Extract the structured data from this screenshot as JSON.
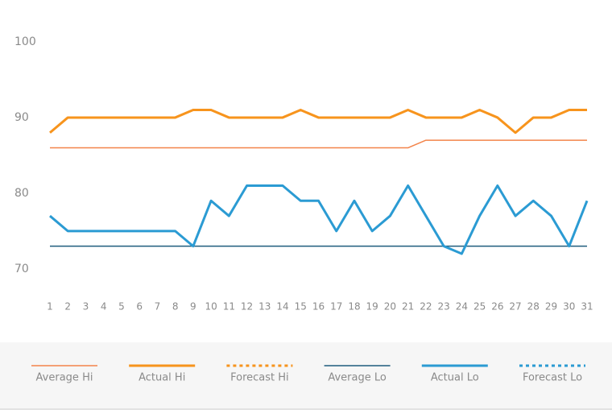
{
  "chart_data": {
    "type": "line",
    "categories": [
      "1",
      "2",
      "3",
      "4",
      "5",
      "6",
      "7",
      "8",
      "9",
      "10",
      "11",
      "12",
      "13",
      "14",
      "15",
      "16",
      "17",
      "18",
      "19",
      "20",
      "21",
      "22",
      "23",
      "24",
      "25",
      "26",
      "27",
      "28",
      "29",
      "30",
      "31"
    ],
    "ylim": [
      67,
      100
    ],
    "yticks": [
      70,
      80,
      90,
      100
    ],
    "grid": false,
    "legend": "bottom",
    "series": [
      {
        "name": "Average Hi",
        "color": "#f3844a",
        "linewidth": 1.5,
        "dashed": false,
        "values": [
          86,
          86,
          86,
          86,
          86,
          86,
          86,
          86,
          86,
          86,
          86,
          86,
          86,
          86,
          86,
          86,
          86,
          86,
          86,
          86,
          86,
          87,
          87,
          87,
          87,
          87,
          87,
          87,
          87,
          87,
          87
        ]
      },
      {
        "name": "Actual Hi",
        "color": "#f7941d",
        "linewidth": 3,
        "dashed": false,
        "values": [
          88,
          90,
          90,
          90,
          90,
          90,
          90,
          90,
          91,
          91,
          90,
          90,
          90,
          90,
          91,
          90,
          90,
          90,
          90,
          90,
          91,
          90,
          90,
          90,
          91,
          90,
          88,
          90,
          90,
          91,
          91
        ]
      },
      {
        "name": "Forecast Hi",
        "color": "#f7941d",
        "linewidth": 3,
        "dashed": true,
        "values": [
          null,
          null,
          null,
          null,
          null,
          null,
          null,
          null,
          null,
          null,
          null,
          null,
          null,
          null,
          null,
          null,
          null,
          null,
          null,
          null,
          null,
          null,
          null,
          null,
          null,
          null,
          null,
          null,
          null,
          null,
          null
        ]
      },
      {
        "name": "Average Lo",
        "color": "#1f5c7d",
        "linewidth": 1.5,
        "dashed": false,
        "values": [
          73,
          73,
          73,
          73,
          73,
          73,
          73,
          73,
          73,
          73,
          73,
          73,
          73,
          73,
          73,
          73,
          73,
          73,
          73,
          73,
          73,
          73,
          73,
          73,
          73,
          73,
          73,
          73,
          73,
          73,
          73
        ]
      },
      {
        "name": "Actual Lo",
        "color": "#2b9bd3",
        "linewidth": 3,
        "dashed": false,
        "values": [
          77,
          75,
          75,
          75,
          75,
          75,
          75,
          75,
          73,
          79,
          77,
          81,
          81,
          81,
          79,
          79,
          75,
          79,
          75,
          77,
          81,
          77,
          73,
          72,
          77,
          81,
          77,
          79,
          77,
          73,
          79
        ]
      },
      {
        "name": "Forecast Lo",
        "color": "#2b9bd3",
        "linewidth": 3,
        "dashed": true,
        "values": [
          null,
          null,
          null,
          null,
          null,
          null,
          null,
          null,
          null,
          null,
          null,
          null,
          null,
          null,
          null,
          null,
          null,
          null,
          null,
          null,
          null,
          null,
          null,
          null,
          null,
          null,
          null,
          null,
          null,
          null,
          null
        ]
      }
    ]
  }
}
